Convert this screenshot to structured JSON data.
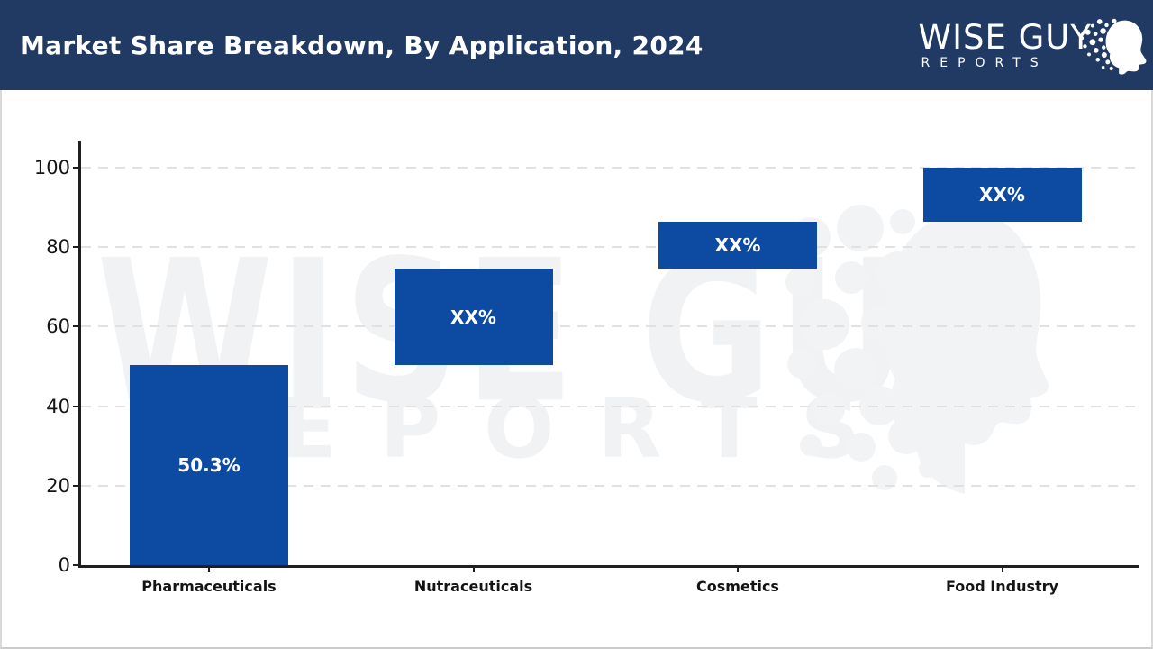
{
  "header": {
    "title": "Market Share Breakdown, By Application, 2024",
    "bg_color": "#213a64",
    "logo": {
      "word": "WISE GUY",
      "sub": "REPORTS"
    }
  },
  "watermark": {
    "line1": "WISE GUY",
    "line2": "REPORTS"
  },
  "chart_data": {
    "type": "bar",
    "variant": "waterfall",
    "title": "Market Share Breakdown, By Application, 2024",
    "xlabel": "",
    "ylabel": "",
    "categories": [
      "Pharmaceuticals",
      "Nutraceuticals",
      "Cosmetics",
      "Food Industry"
    ],
    "segments": [
      {
        "category": "Pharmaceuticals",
        "start": 0,
        "end": 50.3,
        "size": 50.3,
        "label": "50.3%"
      },
      {
        "category": "Nutraceuticals",
        "start": 50.3,
        "end": 74.6,
        "size": 24.3,
        "label": "XX%"
      },
      {
        "category": "Cosmetics",
        "start": 74.6,
        "end": 86.3,
        "size": 11.7,
        "label": "XX%"
      },
      {
        "category": "Food Industry",
        "start": 86.3,
        "end": 100,
        "size": 13.7,
        "label": "XX%"
      }
    ],
    "ylim": [
      0,
      100
    ],
    "yticks": [
      0,
      20,
      40,
      60,
      80,
      100
    ],
    "grid": "horizontal-dashed",
    "legend": "none",
    "bar_color": "#0d4aa1",
    "bar_label_color": "#ffffff"
  }
}
